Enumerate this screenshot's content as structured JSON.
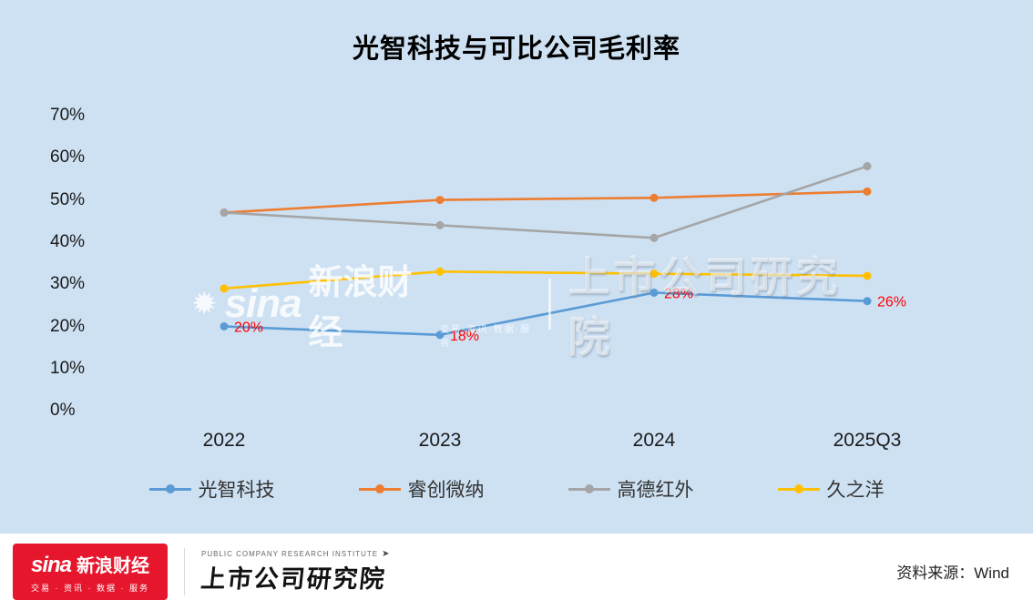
{
  "title": "光智科技与可比公司毛利率",
  "chart_data": {
    "type": "line",
    "categories": [
      "2022",
      "2023",
      "2024",
      "2025Q3"
    ],
    "series": [
      {
        "name": "光智科技",
        "color": "#5B9BD5",
        "values": [
          20,
          18,
          28,
          26
        ],
        "labels": [
          "20%",
          "18%",
          "28%",
          "26%"
        ],
        "label_color": "#FF0000"
      },
      {
        "name": "睿创微纳",
        "color": "#ED7D31",
        "values": [
          47,
          50,
          50.5,
          52
        ]
      },
      {
        "name": "高德红外",
        "color": "#A5A5A5",
        "values": [
          47,
          44,
          41,
          58
        ]
      },
      {
        "name": "久之洋",
        "color": "#FFC000",
        "values": [
          29,
          33,
          32.5,
          32
        ]
      }
    ],
    "ylim": [
      0,
      70
    ],
    "ytick_step": 10,
    "ytick_labels": [
      "0%",
      "10%",
      "20%",
      "30%",
      "40%",
      "50%",
      "60%",
      "70%"
    ],
    "grid": false,
    "legend_position": "bottom"
  },
  "watermark": {
    "sun_icon": "✹",
    "sina_word": "sina",
    "sina_brand": "新浪财经",
    "sina_sub": "交易·资讯·数据·服务",
    "divider": "",
    "institute": "上市公司研究院"
  },
  "footer": {
    "sina_word": "sina",
    "sina_brand": "新浪财经",
    "sina_tagline": "交易 · 资讯 · 数据 · 服务",
    "institute_subtitle": "PUBLIC COMPANY RESEARCH INSTITUTE",
    "rocket_icon": "➤",
    "institute_name": "上市公司研究院",
    "source": "资料来源：Wind"
  },
  "colors": {
    "background": "#CEE1F3",
    "footer_bg": "#FFFFFF",
    "sina_red": "#E6162D",
    "data_label_red": "#FF0000"
  }
}
